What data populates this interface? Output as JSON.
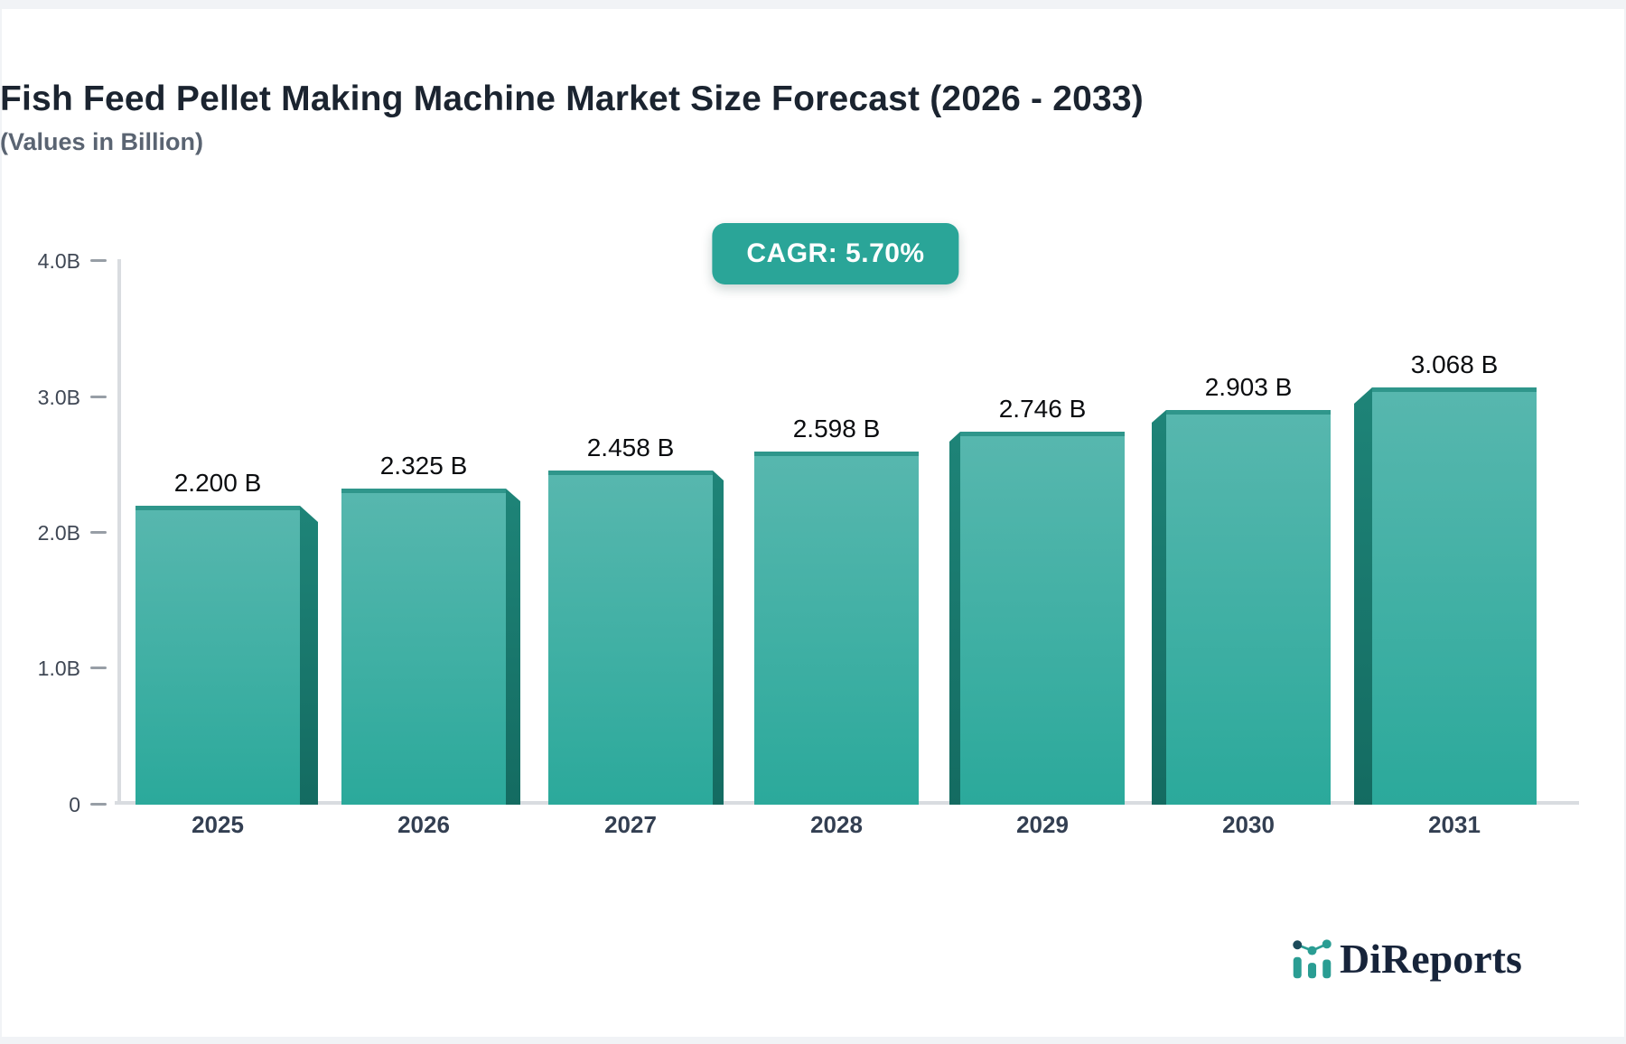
{
  "page": {
    "background": "#f1f3f6",
    "card_background": "#ffffff"
  },
  "header": {
    "title": "Fish Feed Pellet Making Machine Market Size Forecast (2026 - 2033)",
    "subtitle": "(Values in Billion)"
  },
  "badge": {
    "label": "CAGR: 5.70%",
    "background": "#2aa598"
  },
  "chart_data": {
    "type": "bar",
    "title": "Fish Feed Pellet Making Machine Market Size Forecast (2026 - 2033)",
    "subtitle": "(Values in Billion)",
    "cagr": "5.70%",
    "categories": [
      "2025",
      "2026",
      "2027",
      "2028",
      "2029",
      "2030",
      "2031"
    ],
    "values": [
      2.2,
      2.325,
      2.458,
      2.598,
      2.746,
      2.903,
      3.068
    ],
    "value_labels": [
      "2.200 B",
      "2.325 B",
      "2.458 B",
      "2.598 B",
      "2.746 B",
      "2.903 B",
      "3.068 B"
    ],
    "xlabel": "",
    "ylabel": "",
    "ylim": [
      0,
      4.0
    ],
    "y_ticks": [
      "4.0B",
      "3.0B",
      "2.0B",
      "1.0B",
      "0"
    ],
    "y_tick_values": [
      4.0,
      3.0,
      2.0,
      1.0,
      0
    ],
    "grid": false,
    "legend": false,
    "bar_color_top": "#57b7ae",
    "bar_color_bottom": "#2ba99b",
    "bar_side_color": "#1e8478"
  },
  "branding": {
    "logo_text": "DiReports",
    "icon": "bar-line-chart-icon",
    "text_color": "#17243a",
    "accent_color": "#2a9d93"
  }
}
